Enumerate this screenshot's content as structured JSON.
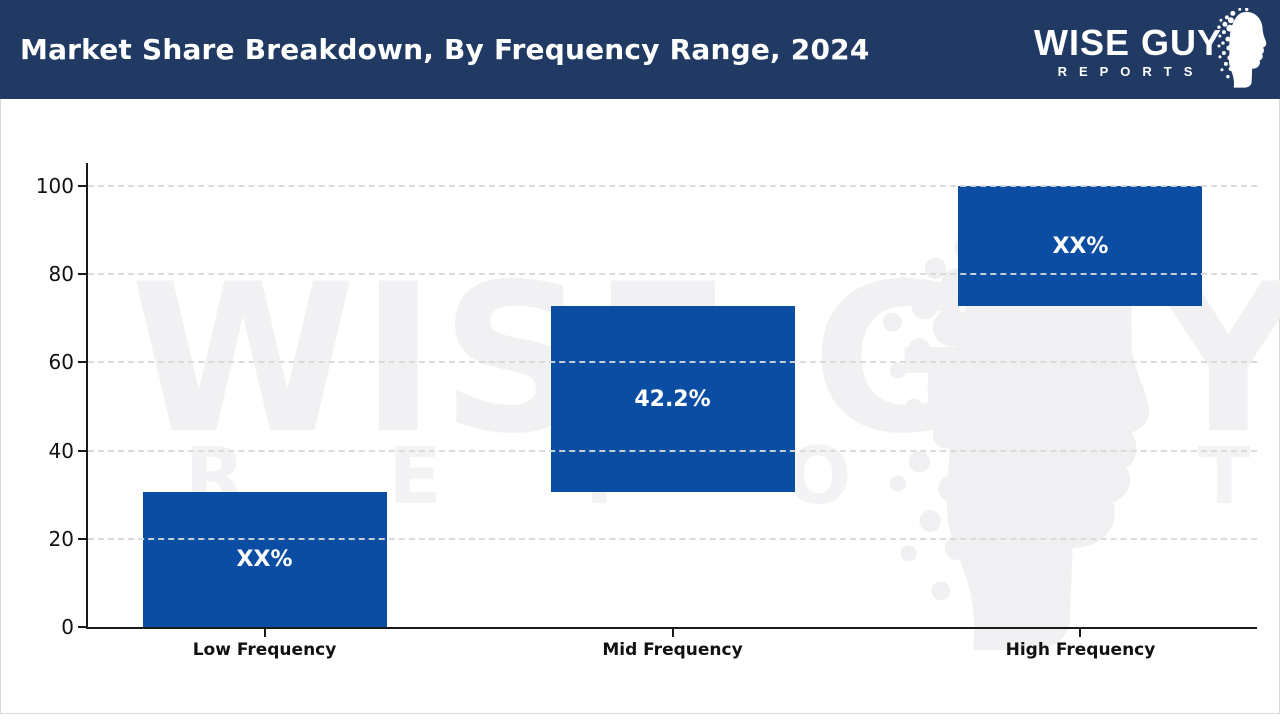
{
  "header": {
    "title": "Market Share Breakdown, By Frequency Range, 2024",
    "logo": {
      "line1": "WISE GUY",
      "line2": "REPORTS"
    }
  },
  "watermark": {
    "line1": "WISE GUY",
    "line2": "R E P O R T S"
  },
  "colors": {
    "header_bg": "#213a64",
    "bar": "#0b4da2",
    "gridline": "#d9d9d9",
    "watermark": "#f1f1f4",
    "axis": "#1a1a1a"
  },
  "chart_data": {
    "type": "bar",
    "subtype": "waterfall",
    "title": "Market Share Breakdown, By Frequency Range, 2024",
    "categories": [
      "Low Frequency",
      "Mid Frequency",
      "High Frequency"
    ],
    "segments": [
      {
        "from": 0,
        "to": 30.5,
        "label": "XX%"
      },
      {
        "from": 30.5,
        "to": 72.7,
        "label": "42.2%"
      },
      {
        "from": 72.7,
        "to": 100,
        "label": "XX%"
      }
    ],
    "bar_labels": [
      "XX%",
      "42.2%",
      "XX%"
    ],
    "xlabel": "",
    "ylabel": "",
    "ylim": [
      0,
      100
    ],
    "yticks": [
      0,
      20,
      40,
      60,
      80,
      100
    ],
    "grid": "horizontal-dashed",
    "grid_above_bars": true,
    "legend": "none",
    "bar_color": "#0b4da2"
  }
}
